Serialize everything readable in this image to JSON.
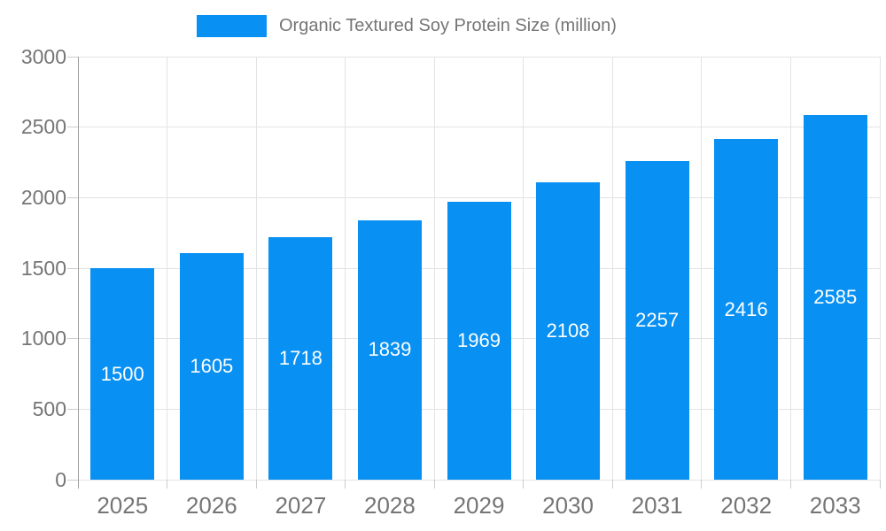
{
  "legend": {
    "label": "Organic Textured Soy Protein Size (million)"
  },
  "colors": {
    "bar": "#0890f2",
    "axis_line": "#9e9e9e",
    "grid_line": "#e3e3e3",
    "tick": "#cccccc",
    "label_text": "#757575",
    "value_text": "#ffffff",
    "background": "#ffffff"
  },
  "chart_data": {
    "type": "bar",
    "title": "Organic Textured Soy Protein Size (million)",
    "categories": [
      "2025",
      "2026",
      "2027",
      "2028",
      "2029",
      "2030",
      "2031",
      "2032",
      "2033"
    ],
    "values": [
      1500,
      1605,
      1718,
      1839,
      1969,
      2108,
      2257,
      2416,
      2585
    ],
    "series": [
      {
        "name": "Organic Textured Soy Protein Size (million)",
        "values": [
          1500,
          1605,
          1718,
          1839,
          1969,
          2108,
          2257,
          2416,
          2585
        ]
      }
    ],
    "xlabel": "",
    "ylabel": "",
    "ylim": [
      0,
      3000
    ],
    "yticks": [
      0,
      500,
      1000,
      1500,
      2000,
      2500,
      3000
    ],
    "grid": true,
    "legend_position": "top",
    "value_labels": "inside-center"
  }
}
